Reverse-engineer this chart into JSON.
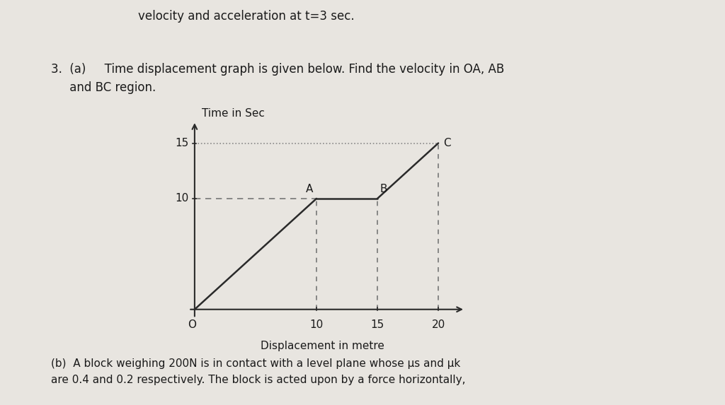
{
  "title_top": "velocity and acceleration at t=3 sec.",
  "question_text_1": "3.  (a)     Time displacement graph is given below. Find the velocity in OA, AB",
  "question_text_2": "     and BC region.",
  "bottom_text_1": "(b)  A block weighing 200N is in contact with a level plane whose μs and μk",
  "bottom_text_2": "are 0.4 and 0.2 respectively. The block is acted upon by a force horizontally,",
  "ylabel": "Time in Sec",
  "xlabel": "Displacement in metre",
  "O": [
    0,
    0
  ],
  "A": [
    10,
    10
  ],
  "B": [
    15,
    10
  ],
  "C": [
    20,
    15
  ],
  "xlim": [
    -0.8,
    23
  ],
  "ylim": [
    -1.5,
    17.5
  ],
  "line_color": "#2a2a2a",
  "dashed_color": "#777777",
  "dotted_color": "#888888",
  "bg_color": "#e8e5e0",
  "text_color": "#1a1a1a",
  "font_size_title": 12,
  "font_size_question": 12,
  "font_size_bottom": 11,
  "font_size_axis_label": 11,
  "font_size_tick": 11,
  "font_size_point": 11
}
